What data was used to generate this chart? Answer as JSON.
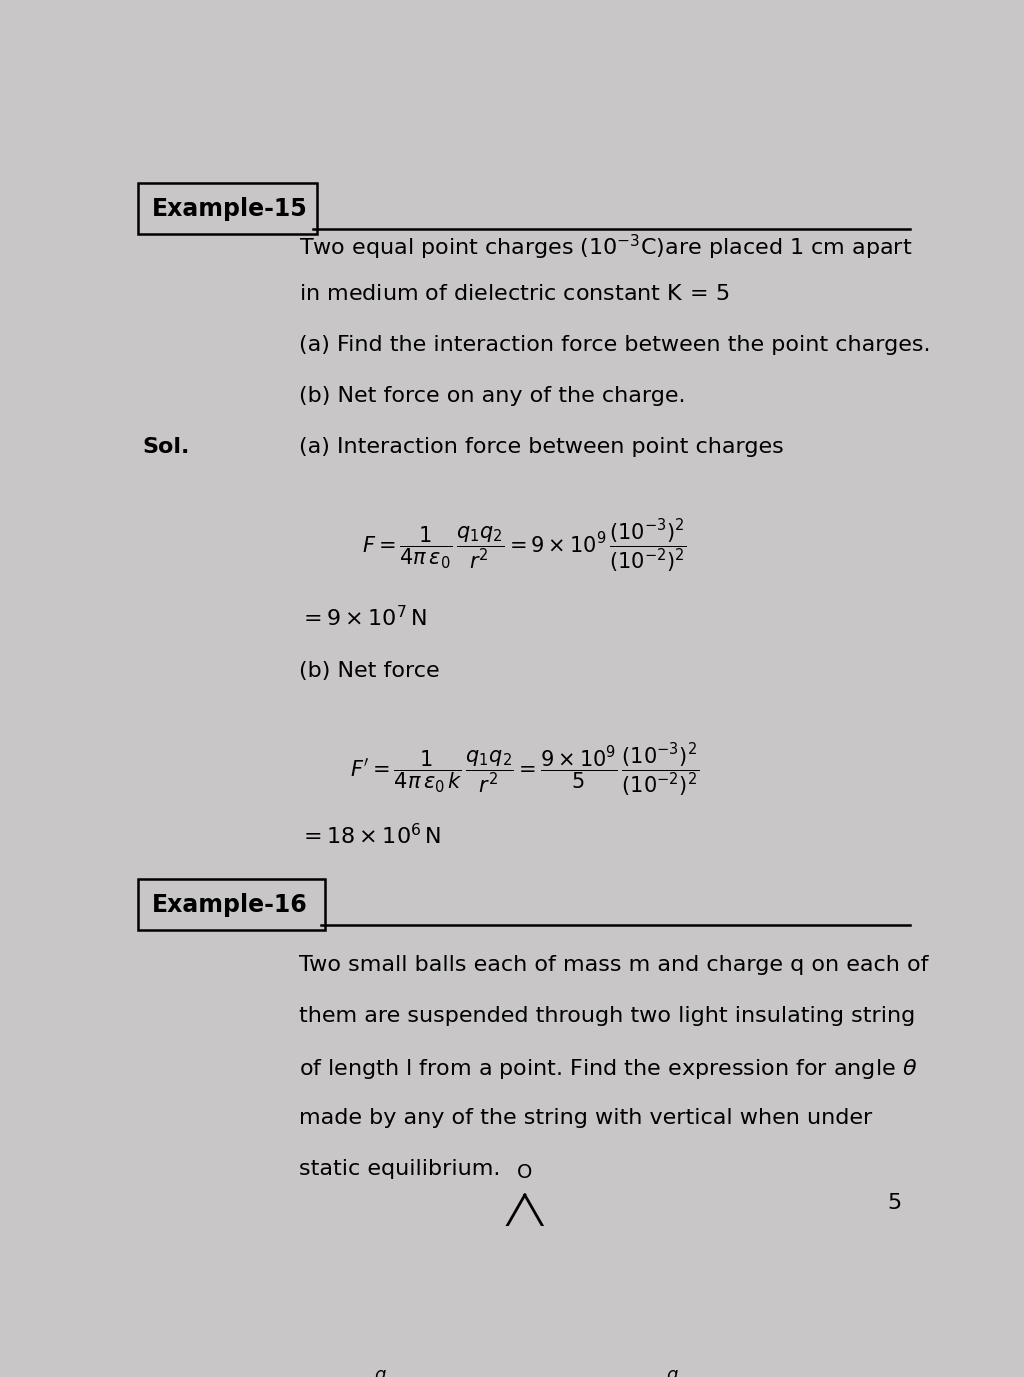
{
  "bg_color": "#c8c6c6",
  "text_color": "#000000",
  "example15_label": "Example-15",
  "example16_label": "Example-16",
  "page_number": "5",
  "indent_main": 0.13,
  "indent_text": 0.22,
  "fs_heading": 17,
  "fs_main": 16,
  "fs_bold": 17,
  "fs_formula": 15,
  "fs_diagram": 14
}
